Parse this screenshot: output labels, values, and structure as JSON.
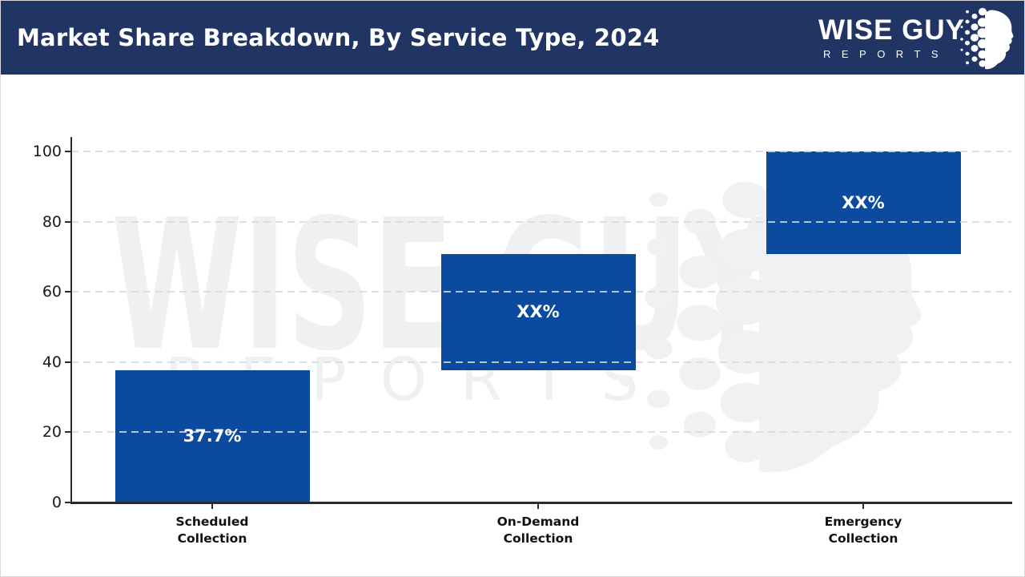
{
  "header": {
    "title": "Market Share Breakdown, By Service Type, 2024",
    "background_color": "#213565",
    "logo": {
      "primary_text": "WISE GUY",
      "secondary_text": "REPORTS",
      "face_icon": "dotted-face-profile-icon"
    }
  },
  "watermark": {
    "line1": "WISE GUY",
    "line2": "REPORTS",
    "face_icon": "dotted-face-profile-watermark",
    "color": "#eef0f2"
  },
  "chart_data": {
    "type": "bar",
    "subtype": "waterfall-stacked-segments",
    "title": "Market Share Breakdown, By Service Type, 2024",
    "categories": [
      "Scheduled Collection",
      "On-Demand Collection",
      "Emergency Collection"
    ],
    "category_labels": [
      {
        "line1": "Scheduled",
        "line2": "Collection"
      },
      {
        "line1": "On-Demand",
        "line2": "Collection"
      },
      {
        "line1": "Emergency",
        "line2": "Collection"
      }
    ],
    "bars": [
      {
        "category": "Scheduled Collection",
        "start": 0,
        "end": 37.7,
        "value": 37.7,
        "label": "37.7%"
      },
      {
        "category": "On-Demand Collection",
        "start": 37.7,
        "end": 70.8,
        "value": 33.1,
        "label": "XX%"
      },
      {
        "category": "Emergency Collection",
        "start": 70.8,
        "end": 100,
        "value": 29.2,
        "label": "XX%"
      }
    ],
    "yticks": {
      "values": [
        0,
        20,
        40,
        60,
        80,
        100
      ],
      "labels": [
        "0",
        "20",
        "40",
        "60",
        "80",
        "100"
      ]
    },
    "ylim": [
      0,
      104
    ],
    "xlabel": "",
    "ylabel": "",
    "grid": "horizontal-dashed",
    "legend_position": "none",
    "bar_color": "#0a4a9f",
    "bar_label_color": "#ffffff",
    "axis_color": "#2b2b2b",
    "grid_color": "#d9dce0"
  }
}
